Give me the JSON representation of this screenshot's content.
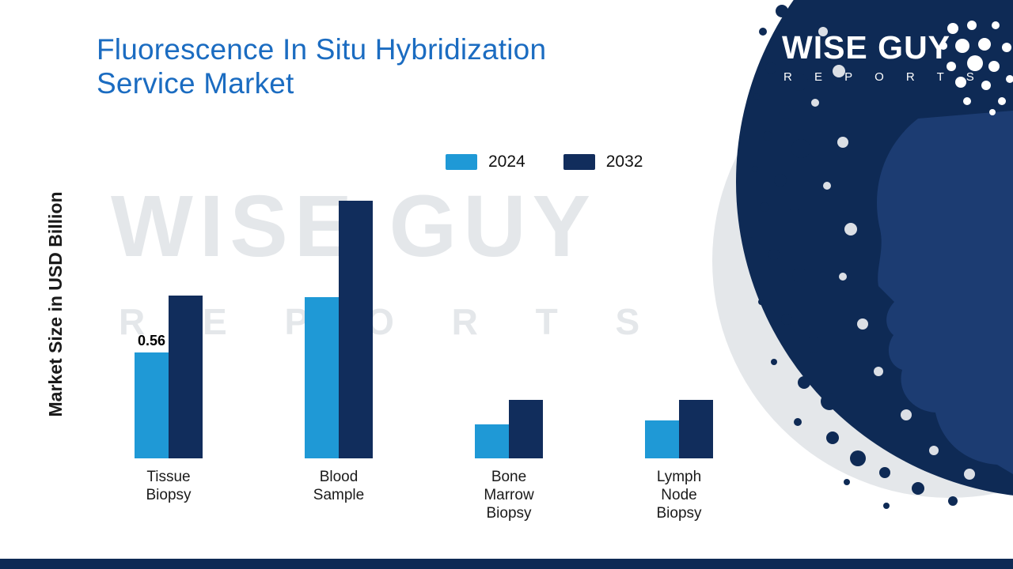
{
  "page": {
    "title_line1": "Fluorescence In Situ Hybridization",
    "title_line2": "Service Market"
  },
  "brand": {
    "logo_line1": "WISE GUY",
    "logo_line2": "R E P O R T S"
  },
  "watermark": {
    "line1": "WISE GUY",
    "line2": "R E P O R T S"
  },
  "colors": {
    "title_blue": "#1b6cc1",
    "navy": "#0e2a55",
    "navy_light": "#1c3c72",
    "watermark_gray": "#e4e7ea",
    "series_2024": "#1f99d6",
    "series_2032": "#112d5c"
  },
  "chart_data": {
    "type": "bar",
    "title": "Fluorescence In Situ Hybridization Service Market",
    "xlabel": "",
    "ylabel": "Market Size in USD Billion",
    "ylim": [
      0,
      1.5
    ],
    "grid": false,
    "legend_position": "top",
    "categories": [
      "Tissue Biopsy",
      "Blood Sample",
      "Bone Marrow Biopsy",
      "Lymph Node Biopsy"
    ],
    "categories_wrapped": [
      [
        "Tissue",
        "Biopsy"
      ],
      [
        "Blood",
        "Sample"
      ],
      [
        "Bone",
        "Marrow",
        "Biopsy"
      ],
      [
        "Lymph",
        "Node",
        "Biopsy"
      ]
    ],
    "series": [
      {
        "name": "2024",
        "color": "#1f99d6",
        "values": [
          0.56,
          0.85,
          0.18,
          0.2
        ],
        "value_labels": [
          "0.56",
          "",
          "",
          ""
        ]
      },
      {
        "name": "2032",
        "color": "#112d5c",
        "values": [
          0.86,
          1.36,
          0.31,
          0.31
        ],
        "value_labels": [
          "",
          "",
          "",
          ""
        ]
      }
    ]
  }
}
